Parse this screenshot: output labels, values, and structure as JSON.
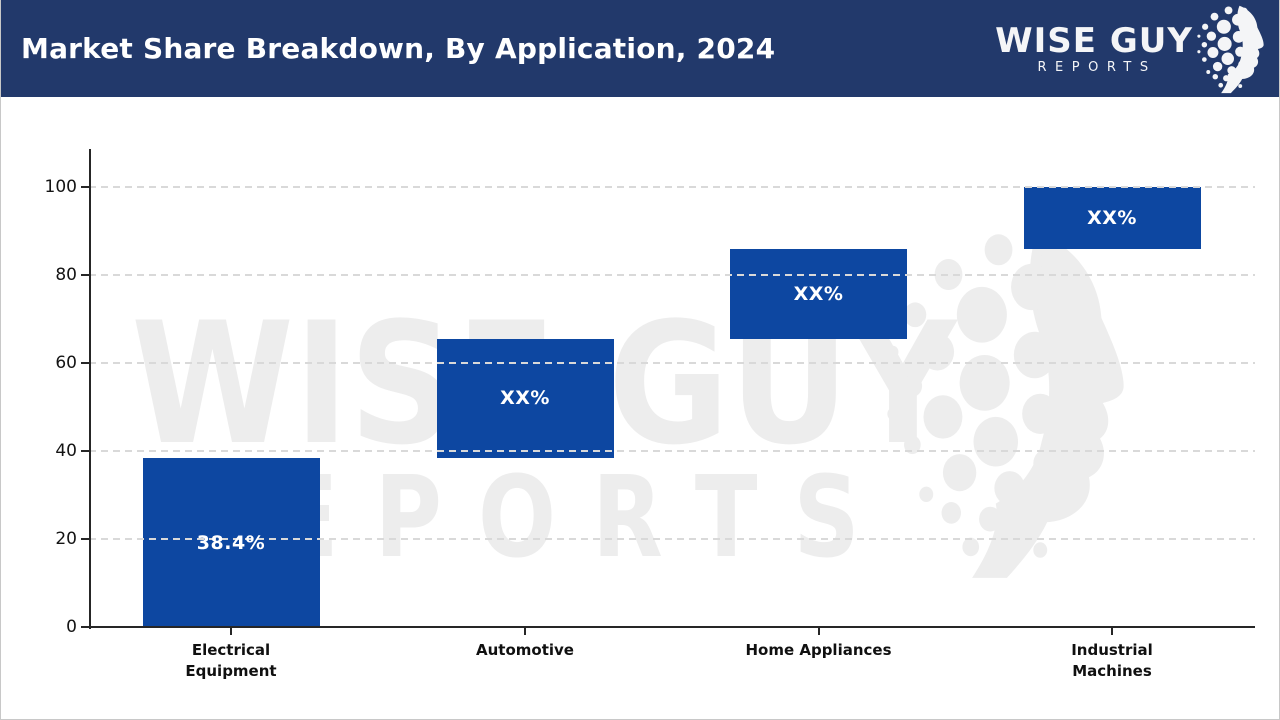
{
  "header": {
    "title": "Market Share Breakdown, By Application, 2024",
    "brand_line1": "WISE GUY",
    "brand_line2": "REPORTS"
  },
  "watermark": {
    "line1": "WISE GUY",
    "line2": "REPORTS"
  },
  "colors": {
    "header_bg": "#22396B",
    "bar": "#0D47A1",
    "bar_label": "#FFFFFF",
    "grid": "#D9D9D9",
    "axis": "#262626",
    "watermark": "#EDEDED"
  },
  "chart_data": {
    "type": "bar",
    "subtype": "waterfall-stacked-market-share",
    "title": "Market Share Breakdown, By Application, 2024",
    "xlabel": "",
    "ylabel": "",
    "ylim": [
      0,
      108
    ],
    "yticks": [
      0,
      20,
      40,
      60,
      80,
      100
    ],
    "grid": "horizontal-dashed",
    "legend": "none",
    "categories": [
      "Electrical\nEquipment",
      "Automotive",
      "Home Appliances",
      "Industrial\nMachines"
    ],
    "segments": [
      {
        "category": "Electrical Equipment",
        "start": 0,
        "end": 38.4,
        "label": "38.4%"
      },
      {
        "category": "Automotive",
        "start": 38.4,
        "end": 65.5,
        "label": "XX%"
      },
      {
        "category": "Home Appliances",
        "start": 65.5,
        "end": 86,
        "label": "XX%"
      },
      {
        "category": "Industrial Machines",
        "start": 86,
        "end": 100,
        "label": "XX%"
      }
    ]
  }
}
